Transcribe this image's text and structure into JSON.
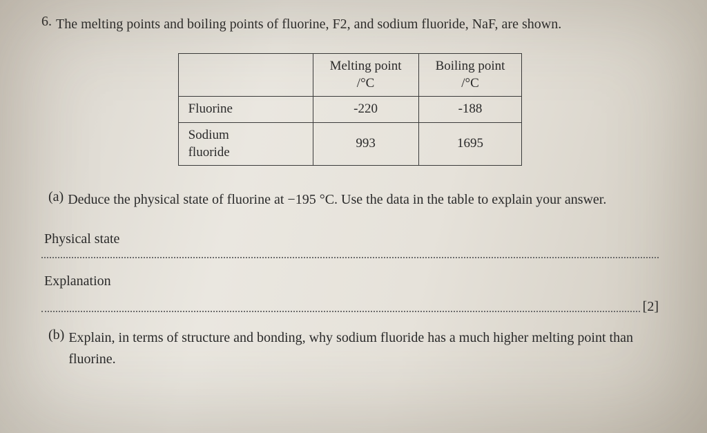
{
  "question": {
    "number": "6.",
    "intro": "The melting points and boiling points of fluorine, F2, and sodium fluoride, NaF, are shown."
  },
  "table": {
    "head": {
      "blank": "",
      "col1_line1": "Melting point",
      "col1_line2": "/°C",
      "col2_line1": "Boiling point",
      "col2_line2": "/°C"
    },
    "rows": [
      {
        "label": "Fluorine",
        "mp": "-220",
        "bp": "-188"
      },
      {
        "label_line1": "Sodium",
        "label_line2": "fluoride",
        "mp": "993",
        "bp": "1695"
      }
    ]
  },
  "parts": {
    "a": {
      "label": "(a)",
      "text": "Deduce the physical state of fluorine at −195 °C. Use the data in the table to explain your answer.",
      "field1": "Physical state",
      "field2": "Explanation",
      "marks": "[2]"
    },
    "b": {
      "label": "(b)",
      "text": "Explain, in terms of structure and bonding, why sodium fluoride has a much higher melting point than fluorine."
    }
  }
}
